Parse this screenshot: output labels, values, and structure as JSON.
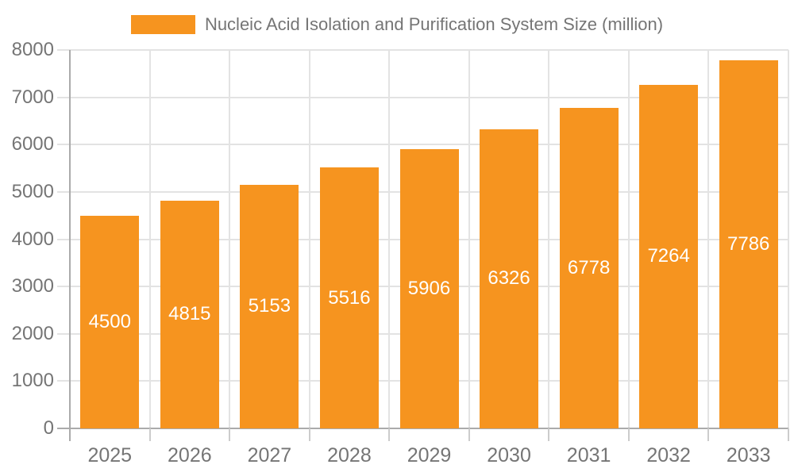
{
  "chart_data": {
    "type": "bar",
    "title": "Nucleic Acid Isolation and Purification System Size (million)",
    "categories": [
      "2025",
      "2026",
      "2027",
      "2028",
      "2029",
      "2030",
      "2031",
      "2032",
      "2033"
    ],
    "values": [
      4500,
      4815,
      5153,
      5516,
      5906,
      6326,
      6778,
      7264,
      7786
    ],
    "xlabel": "",
    "ylabel": "",
    "ylim": [
      0,
      8000
    ],
    "ytick_step": 1000,
    "ytick_labels": [
      "0",
      "1000",
      "2000",
      "3000",
      "4000",
      "5000",
      "6000",
      "7000",
      "8000"
    ],
    "grid": true,
    "legend_position": "top-center",
    "bar_value_labels_inside": true,
    "colors": {
      "bar": "#F6941F",
      "bar_label_text": "#FFFFFF",
      "gridline": "#E3E3E3",
      "axis_line": "#ABABAB",
      "minor_tick": "#CCCCCC",
      "tick_label_text": "#757575",
      "legend_text": "#757575",
      "background": "#FFFFFF"
    }
  }
}
